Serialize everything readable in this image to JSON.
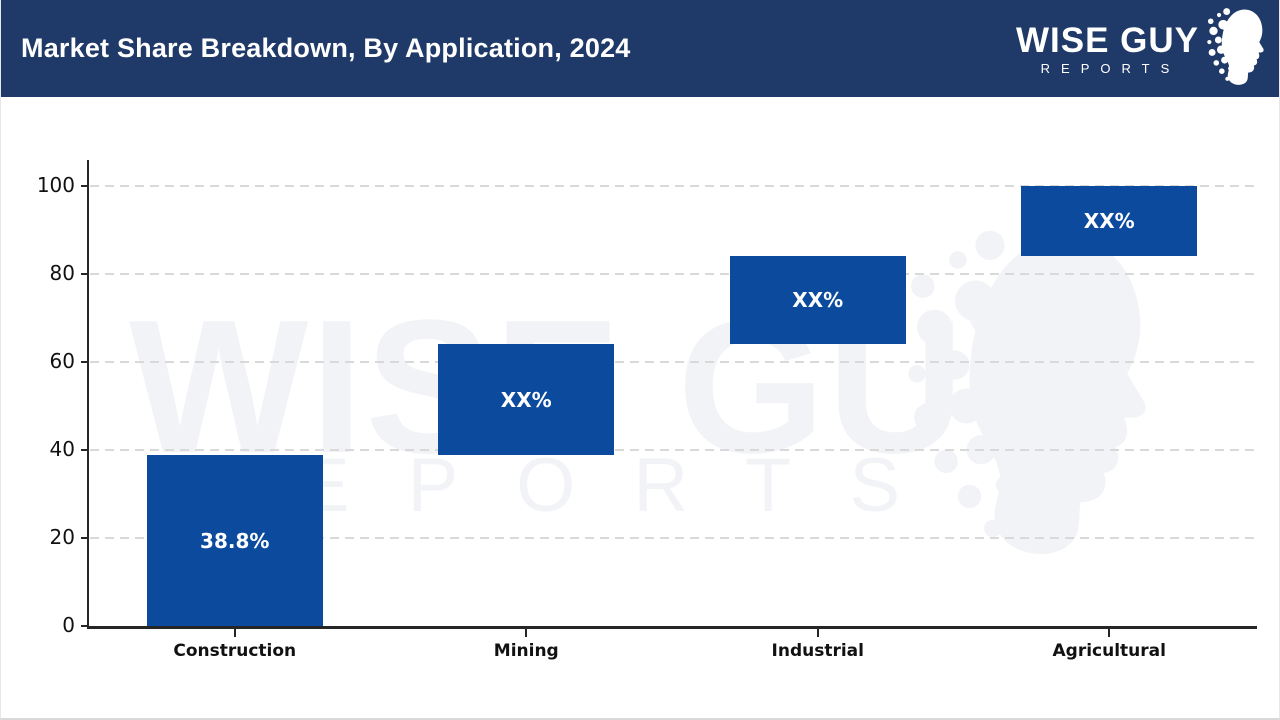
{
  "header": {
    "title": "Market Share Breakdown, By Application, 2024",
    "bg_color": "#1f3a68",
    "logo": {
      "line1": "WISE GUY",
      "line2": "REPORTS"
    }
  },
  "watermark": {
    "line1": "WISE GUY",
    "line2": "REPORTS"
  },
  "chart_data": {
    "type": "bar",
    "variant": "floating-segment-waterfall",
    "title": "Market Share Breakdown, By Application, 2024",
    "categories": [
      "Construction",
      "Mining",
      "Industrial",
      "Agricultural"
    ],
    "segments": [
      [
        0,
        38.8
      ],
      [
        38.8,
        64
      ],
      [
        64,
        84
      ],
      [
        84,
        100
      ]
    ],
    "values": [
      38.8,
      25.2,
      20.0,
      16.0
    ],
    "bar_labels": [
      "38.8%",
      "XX%",
      "XX%",
      "XX%"
    ],
    "yticks": [
      0,
      20,
      40,
      60,
      80,
      100
    ],
    "ylim": [
      0,
      100
    ],
    "xlabel": "",
    "ylabel": "",
    "grid": "horizontal-dashed",
    "legend": "none",
    "bar_color": "#0c4a9e",
    "label_color": "#ffffff"
  }
}
